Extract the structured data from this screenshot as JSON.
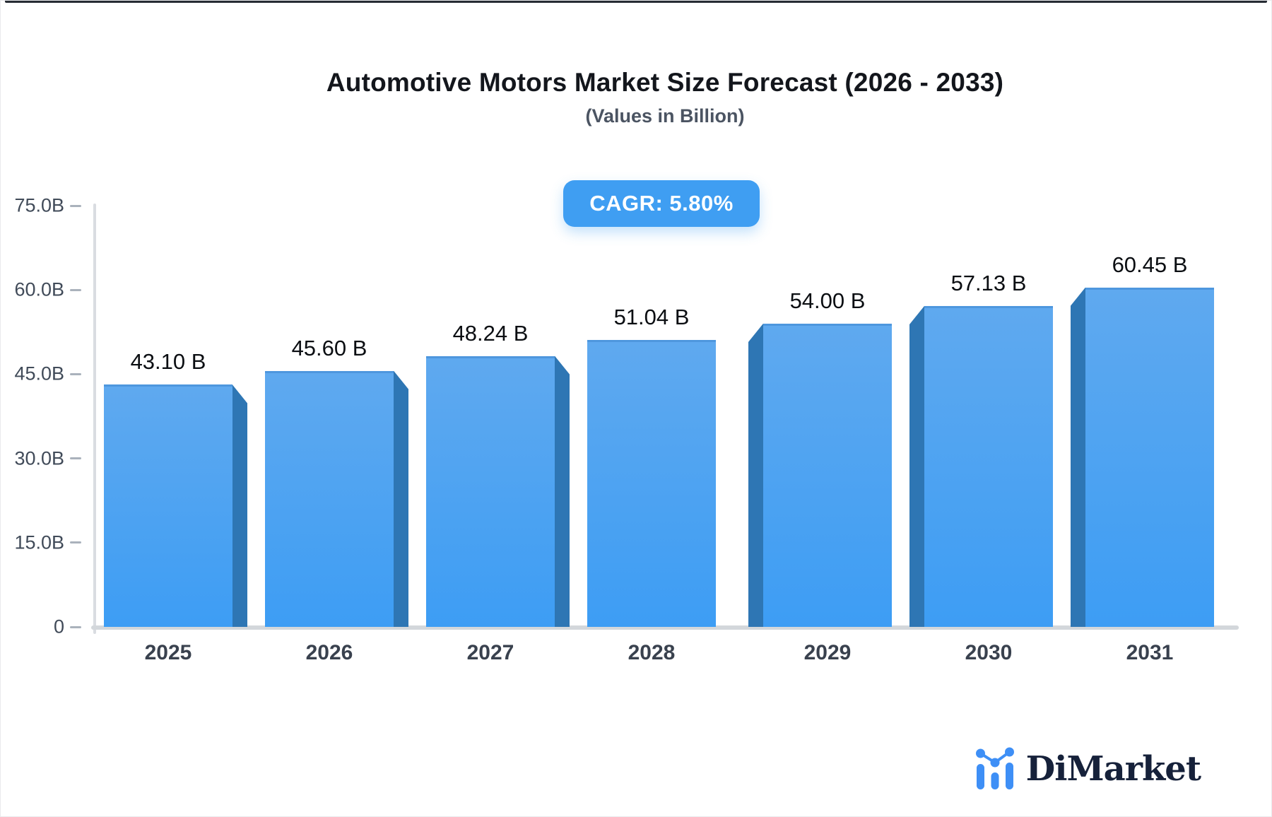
{
  "header": {
    "title": "Automotive Motors Market Size Forecast (2026 - 2033)",
    "subtitle": "(Values in Billion)"
  },
  "badge": {
    "label": "CAGR: 5.80%"
  },
  "chart_data": {
    "type": "bar",
    "categories": [
      "2025",
      "2026",
      "2027",
      "2028",
      "2029",
      "2030",
      "2031"
    ],
    "values": [
      43.1,
      45.6,
      48.24,
      51.04,
      54.0,
      57.13,
      60.45
    ],
    "value_labels": [
      "43.10 B",
      "45.60 B",
      "48.24 B",
      "51.04 B",
      "54.00 B",
      "57.13 B",
      "60.45 B"
    ],
    "y_ticks": [
      "75.0B",
      "60.0B",
      "45.0B",
      "30.0B",
      "15.0B",
      "0"
    ],
    "ylim": [
      0,
      75
    ],
    "grid": false,
    "legend": "none",
    "style": "3d-extruded-columns"
  },
  "colors": {
    "accent": "#3f9ef2",
    "bar_face_top": "#5fa9ef",
    "bar_face_bottom": "#3d9df4",
    "bar_face_edge": "#4e97de",
    "bar_side": "#2e76b4",
    "axis_line": "#d9dce1",
    "baseline": "#d3d7db",
    "tick_dash": "#aab2bc"
  },
  "logo": {
    "text": "DiMarket",
    "icon": "mini-bar-chart-icon"
  }
}
